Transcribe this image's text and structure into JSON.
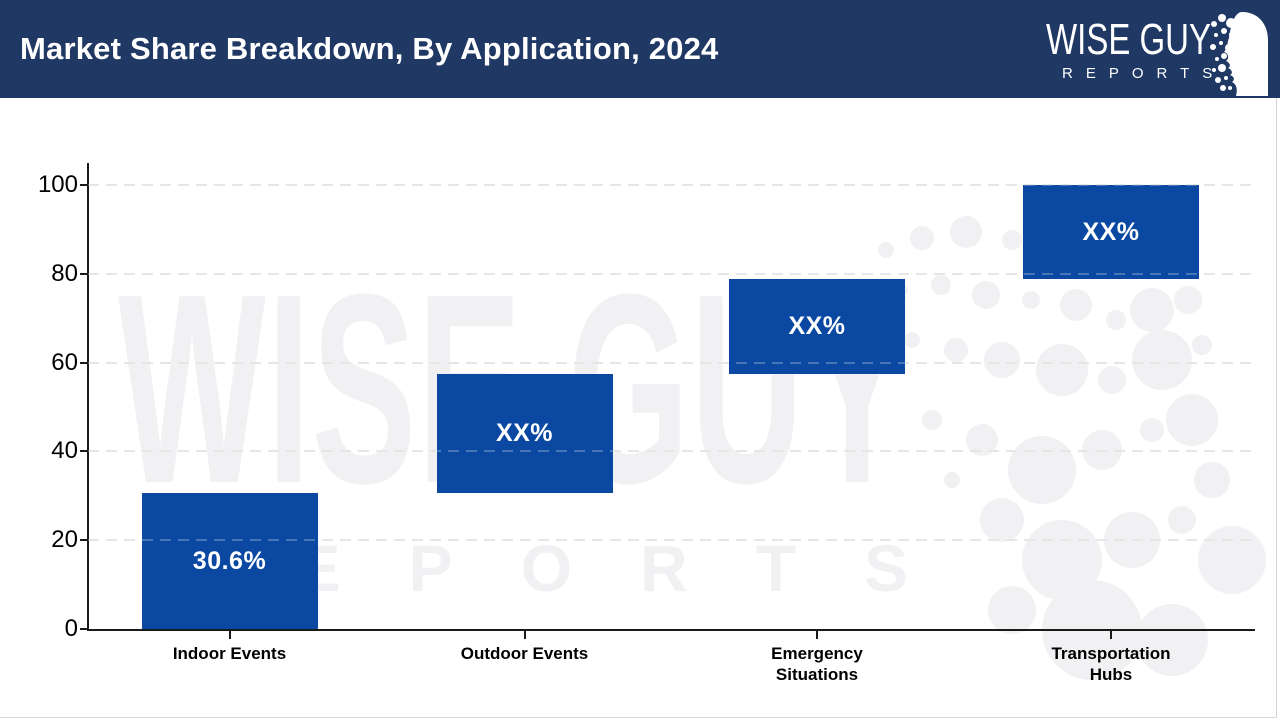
{
  "header": {
    "title": "Market Share Breakdown, By Application, 2024",
    "logo": {
      "wordmark": "WISE GUY",
      "sub": "REPORTS"
    }
  },
  "watermark": {
    "line1": "WISE GUY",
    "line2": "REPORTS"
  },
  "chart_data": {
    "type": "bar",
    "subtype": "waterfall",
    "title": "Market Share Breakdown, By Application, 2024",
    "categories": [
      "Indoor Events",
      "Outdoor Events",
      "Emergency Situations",
      "Transportation Hubs"
    ],
    "category_label_lines": [
      [
        "Indoor Events"
      ],
      [
        "Outdoor Events"
      ],
      [
        "Emergency",
        "Situations"
      ],
      [
        "Transportation",
        "Hubs"
      ]
    ],
    "segments": [
      {
        "category": "Indoor Events",
        "label": "30.6%",
        "start": 0,
        "end": 30.6,
        "value": 30.6
      },
      {
        "category": "Outdoor Events",
        "label": "XX%",
        "start": 30.6,
        "end": 57.5,
        "value": 26.9
      },
      {
        "category": "Emergency Situations",
        "label": "XX%",
        "start": 57.5,
        "end": 78.8,
        "value": 21.3
      },
      {
        "category": "Transportation Hubs",
        "label": "XX%",
        "start": 78.8,
        "end": 100,
        "value": 21.2
      }
    ],
    "ylim": [
      0,
      100
    ],
    "yticks": [
      0,
      20,
      40,
      60,
      80,
      100
    ],
    "xlabel": "",
    "ylabel": "",
    "grid": "horizontal dashed",
    "legend": "none",
    "bar_color": "#0a48a2",
    "bar_label_color": "#ffffff"
  },
  "colors": {
    "header_bg": "#1f3864",
    "bar_blue": "#0a48a2",
    "gridline": "#dddddd",
    "axis": "#1a1a1a",
    "watermark": "#f1f1f3",
    "page_bg": "#ffffff"
  }
}
